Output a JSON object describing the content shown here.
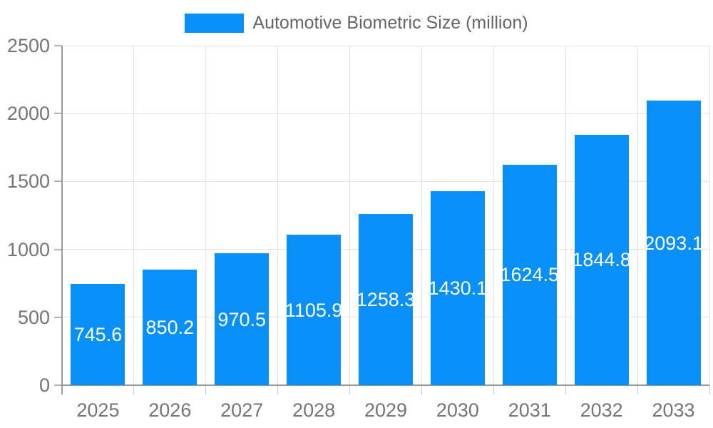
{
  "chart_data": {
    "type": "bar",
    "title": "Automotive Biometric Size (million)",
    "categories": [
      "2025",
      "2026",
      "2027",
      "2028",
      "2029",
      "2030",
      "2031",
      "2032",
      "2033"
    ],
    "values": [
      745.6,
      850.2,
      970.5,
      1105.9,
      1258.3,
      1430.1,
      1624.5,
      1844.8,
      2093.1
    ],
    "value_labels": [
      "745.6",
      "850.2",
      "970.5",
      "1105.9",
      "1258.3",
      "1430.1",
      "1624.5",
      "1844.8",
      "2093.1"
    ],
    "xlabel": "",
    "ylabel": "",
    "ylim": [
      0,
      2500
    ],
    "yticks": [
      0,
      500,
      1000,
      1500,
      2000,
      2500
    ],
    "ytick_labels": [
      "0",
      "500",
      "1000",
      "1500",
      "2000",
      "2500"
    ],
    "grid": true,
    "legend_position": "top",
    "colors": {
      "bar": "#0990f8",
      "value_label": "#ffffff",
      "axis_text": "#757575",
      "legend_text": "#666666"
    }
  }
}
